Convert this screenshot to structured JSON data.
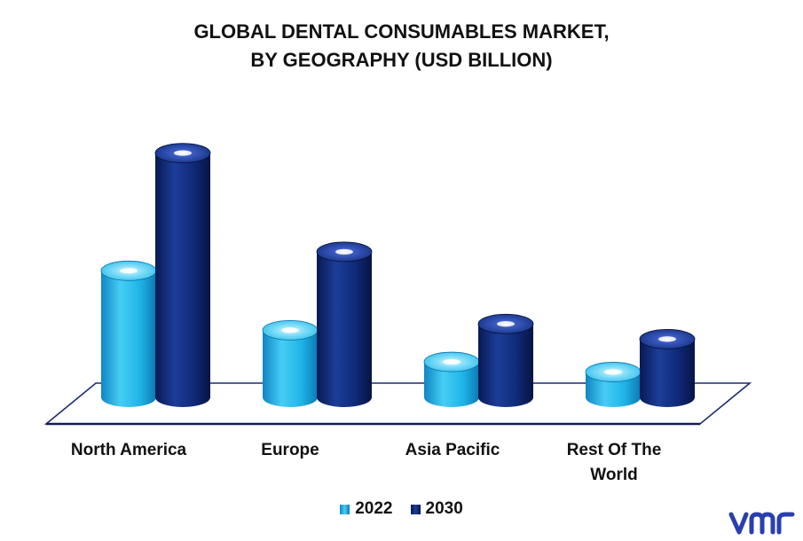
{
  "chart_data": {
    "type": "bar",
    "title_lines": [
      "GLOBAL DENTAL CONSUMABLES MARKET,",
      "BY GEOGRAPHY (USD BILLION)"
    ],
    "categories": [
      "North America",
      "Europe",
      "Asia Pacific",
      "Rest Of The World"
    ],
    "category_lines": [
      [
        "North America"
      ],
      [
        "Europe"
      ],
      [
        "Asia Pacific"
      ],
      [
        "Rest Of The",
        "World"
      ]
    ],
    "series": [
      {
        "name": "2022",
        "values": [
          10.0,
          5.3,
          2.8,
          2.0
        ],
        "color": "#1fb5e8"
      },
      {
        "name": "2030",
        "values": [
          19.3,
          11.5,
          5.8,
          4.6
        ],
        "color": "#0f2a78"
      }
    ],
    "ylim": [
      0,
      20
    ],
    "grid": false,
    "legend_position": "bottom-center",
    "style": "3d-cylinder"
  },
  "logo": {
    "icon": "vmr-logo-icon",
    "color": "#2a3fae"
  }
}
